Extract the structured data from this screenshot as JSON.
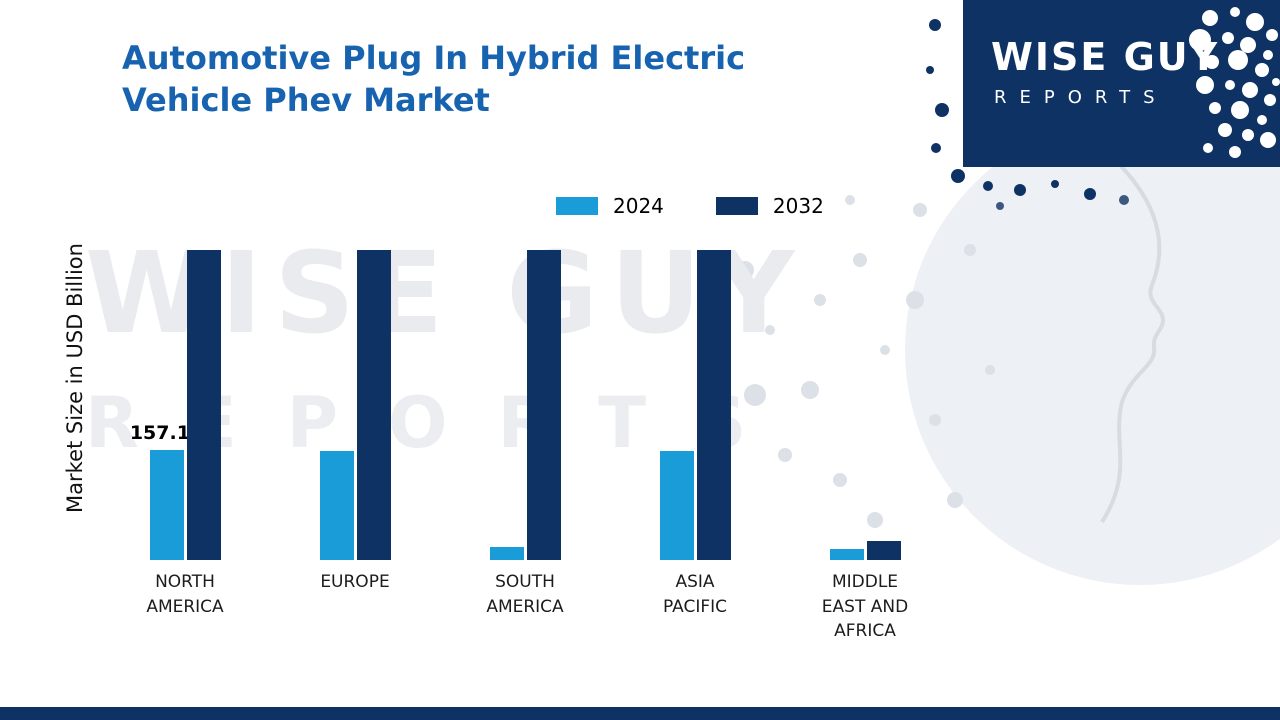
{
  "logo": {
    "name_top": "WISE GUY",
    "name_bottom": "REPORTS"
  },
  "watermark": {
    "top": "WISE GUY",
    "bottom": "REPORTS"
  },
  "chart_data": {
    "type": "bar",
    "title": "Automotive Plug In Hybrid Electric Vehicle  Phev Market",
    "ylabel": "Market Size in USD Billion",
    "categories": [
      "NORTH AMERICA",
      "EUROPE",
      "SOUTH AMERICA",
      "ASIA PACIFIC",
      "MIDDLE EAST AND AFRICA"
    ],
    "series": [
      {
        "name": "2024",
        "color": "#199cd8",
        "values": [
          157.13,
          155,
          18,
          155,
          16
        ]
      },
      {
        "name": "2032",
        "color": "#0e3263",
        "values": [
          443,
          443,
          443,
          443,
          27
        ]
      }
    ],
    "annotations": [
      {
        "text": "157.13",
        "category_index": 0,
        "series_index": 0
      }
    ],
    "ylim": [
      0,
      460
    ],
    "grid": false,
    "legend_position": "top"
  },
  "colors": {
    "title": "#1763af",
    "bar_2024": "#199cd8",
    "bar_2032": "#0e3263",
    "logo_background": "#0e3263",
    "footer": "#0e3263",
    "watermark": "#e9ebee"
  }
}
